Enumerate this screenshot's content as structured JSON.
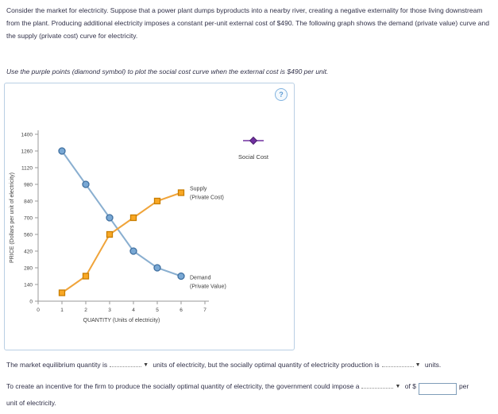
{
  "intro": {
    "text": "Consider the market for electricity. Suppose that a power plant dumps byproducts into a nearby river, creating a negative externality for those living downstream from the plant. Producing additional electricity imposes a constant per-unit external cost of $490. The following graph shows the demand (private value) curve and the supply (private cost) curve for electricity."
  },
  "instruction": {
    "text": "Use the purple points (diamond symbol) to plot the social cost curve when the external cost is $490 per unit."
  },
  "panel": {
    "help_label": "?"
  },
  "chart_data": {
    "type": "line",
    "title": "",
    "xlabel": "QUANTITY (Units of electricity)",
    "ylabel": "PRICE (Dollars per unit of electricity)",
    "xlim": [
      0,
      7
    ],
    "ylim": [
      0,
      1400
    ],
    "x_ticks": [
      0,
      1,
      2,
      3,
      4,
      5,
      6,
      7
    ],
    "y_ticks": [
      0,
      140,
      280,
      420,
      560,
      700,
      840,
      980,
      1120,
      1260,
      1400
    ],
    "grid": false,
    "series": [
      {
        "name": "Demand (Private Value)",
        "label_lines": [
          "Demand",
          "(Private Value)"
        ],
        "marker": "circle",
        "line_color": "#8aafd0",
        "marker_fill": "#79a8d4",
        "marker_stroke": "#3f6fa0",
        "label_dy": 4,
        "x": [
          1,
          2,
          3,
          4,
          5,
          6
        ],
        "y": [
          1260,
          980,
          700,
          420,
          280,
          210
        ]
      },
      {
        "name": "Supply (Private Cost)",
        "label_lines": [
          "Supply",
          "(Private Cost)"
        ],
        "marker": "square",
        "line_color": "#f0a43a",
        "marker_fill": "#f9a825",
        "marker_stroke": "#c87d00",
        "label_dy": -3,
        "x": [
          1,
          2,
          3,
          4,
          5,
          6
        ],
        "y": [
          70,
          210,
          560,
          700,
          840,
          910
        ]
      }
    ],
    "palette_point": {
      "label": "Social Cost",
      "marker": "diamond",
      "color": "#7030a0",
      "stroke": "#4b1f70"
    }
  },
  "questions": {
    "q1_part1": "The market equilibrium quantity is",
    "q1_part2": "units of electricity, but the socially optimal quantity of electricity production is",
    "q1_part3": "units.",
    "q2_part1": "To create an incentive for the firm to produce the socially optimal quantity of electricity, the government could impose a",
    "q2_of": "of $",
    "q2_per": "per",
    "q2_tail": "unit of electricity."
  }
}
